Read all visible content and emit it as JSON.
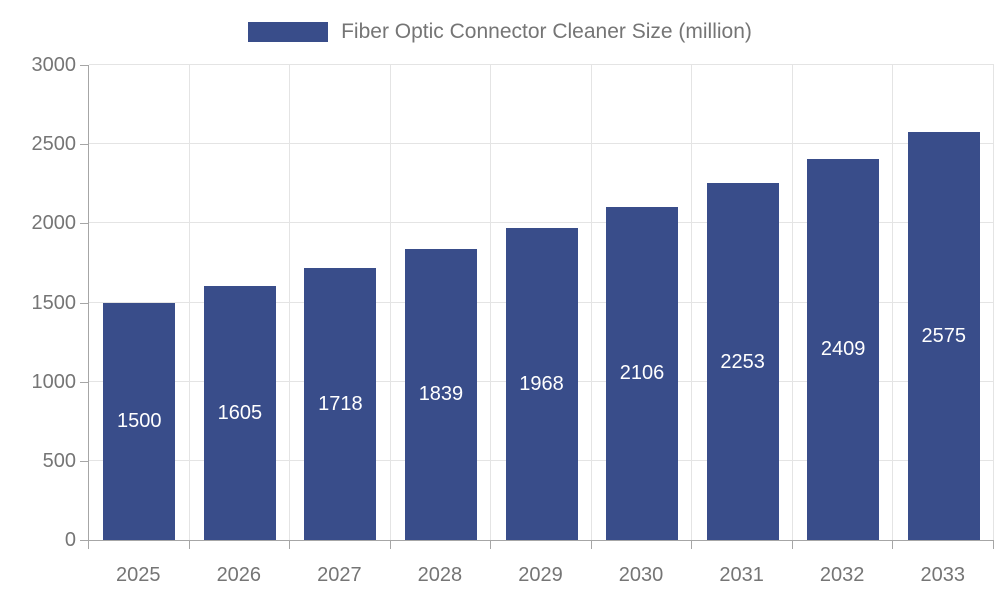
{
  "chart_data": {
    "type": "bar",
    "title": "Fiber Optic Connector Cleaner Size (million)",
    "series_name": "Fiber Optic Connector Cleaner Size (million)",
    "categories": [
      "2025",
      "2026",
      "2027",
      "2028",
      "2029",
      "2030",
      "2031",
      "2032",
      "2033"
    ],
    "values": [
      1500,
      1605,
      1718,
      1839,
      1968,
      2106,
      2253,
      2409,
      2575
    ],
    "xlabel": "",
    "ylabel": "",
    "ylim": [
      0,
      3000
    ],
    "yticks": [
      0,
      500,
      1000,
      1500,
      2000,
      2500,
      3000
    ],
    "grid": true,
    "legend_position": "top",
    "value_label_position": "inside-center"
  },
  "colors": {
    "bar": "#394D8A",
    "value_label": "#FFFFFF",
    "grid": "#E4E4E4",
    "axis": "#A6A6A6",
    "tick_text": "#757575",
    "legend_text": "#757575",
    "background": "#FFFFFF"
  }
}
